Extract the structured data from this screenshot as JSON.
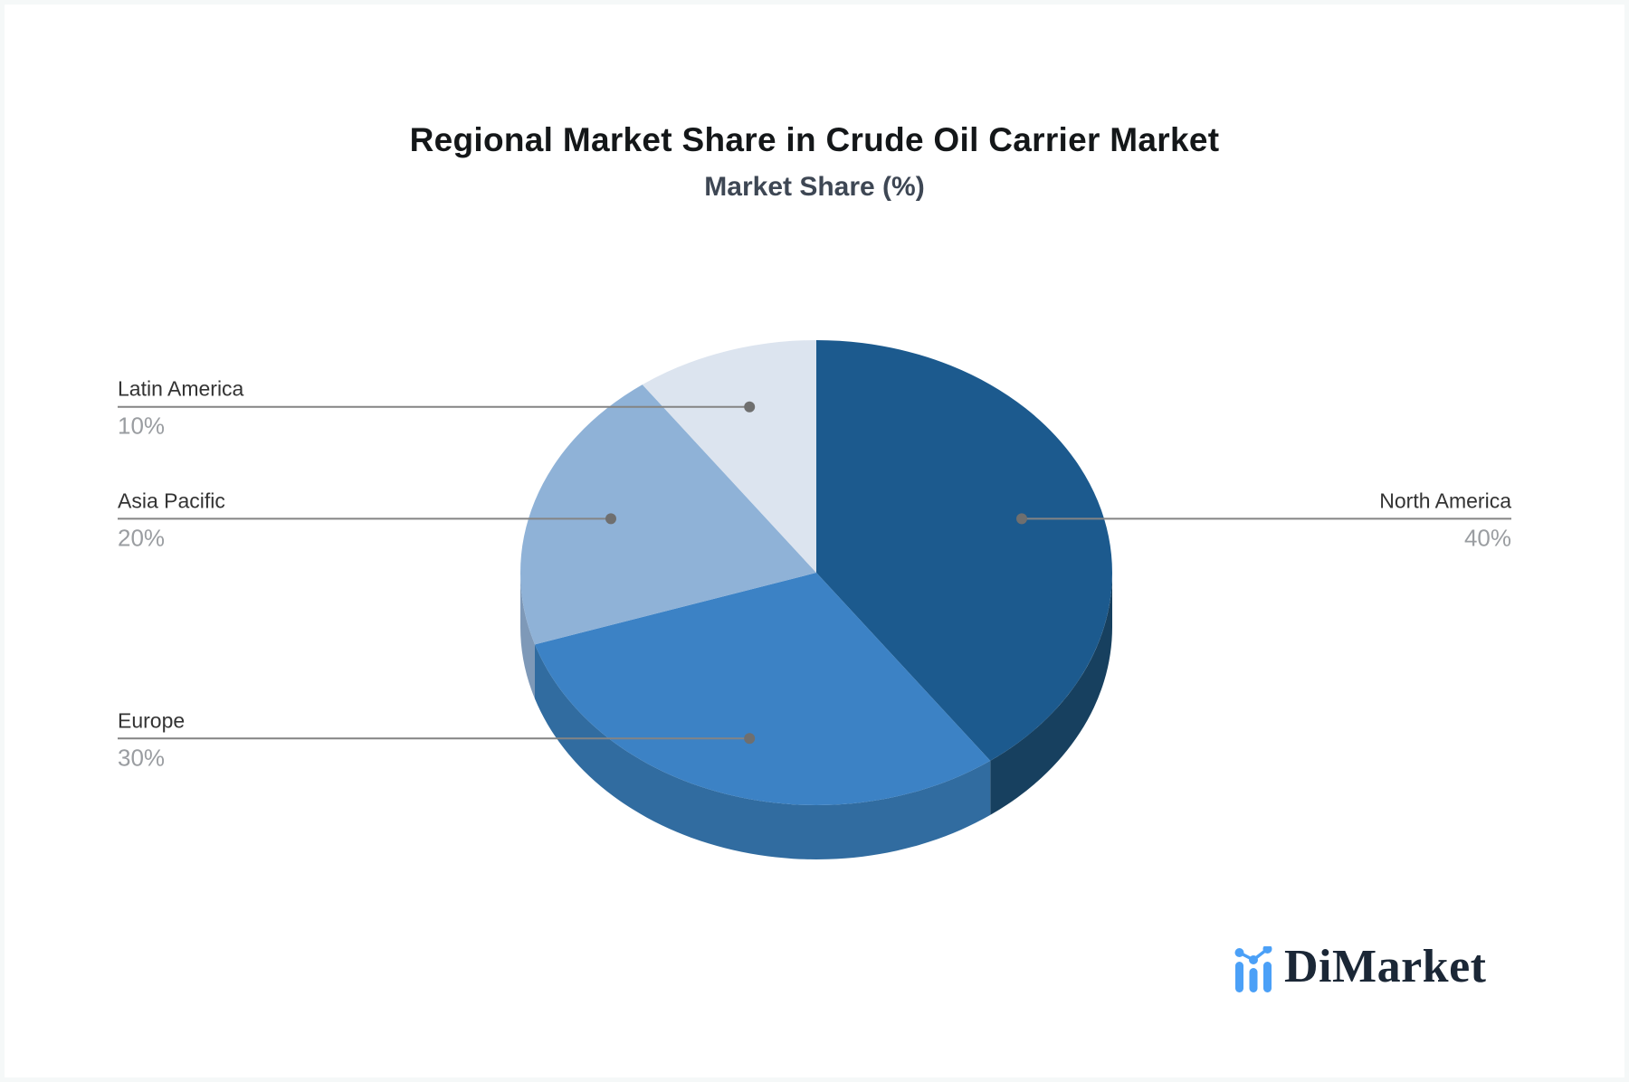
{
  "chart": {
    "title": "Regional Market Share in Crude Oil Carrier Market",
    "subtitle": "Market Share (%)"
  },
  "chart_data": {
    "type": "pie",
    "style": "3d",
    "title": "Regional Market Share in Crude Oil Carrier Market",
    "subtitle": "Market Share (%)",
    "unit": "%",
    "start_angle_deg": 0,
    "direction": "clockwise",
    "legend": "none",
    "label_layout": "leader lines, name above line, percent below",
    "segments": [
      {
        "label": "North America",
        "value": 40,
        "pct_label": "40%",
        "color": "#1c5a8e",
        "side_color": "#17405f"
      },
      {
        "label": "Europe",
        "value": 30,
        "pct_label": "30%",
        "color": "#3c82c5",
        "side_color": "#316ca0"
      },
      {
        "label": "Asia Pacific",
        "value": 20,
        "pct_label": "20%",
        "color": "#8fb2d7",
        "side_color": "#7e99b8"
      },
      {
        "label": "Latin America",
        "value": 10,
        "pct_label": "10%",
        "color": "#dce4ef",
        "side_color": "#b3bdca"
      }
    ]
  },
  "labels": {
    "leader_line_color": "#848484",
    "dot_color": "#6f6f6f",
    "name_color": "#333333",
    "pct_color": "#9a9da1"
  },
  "branding": {
    "logo_text": "DiMarket",
    "logo_icon": "bar-chart-trend-icon",
    "logo_icon_color": "#4ba0f7",
    "logo_text_color": "#1b2736"
  }
}
